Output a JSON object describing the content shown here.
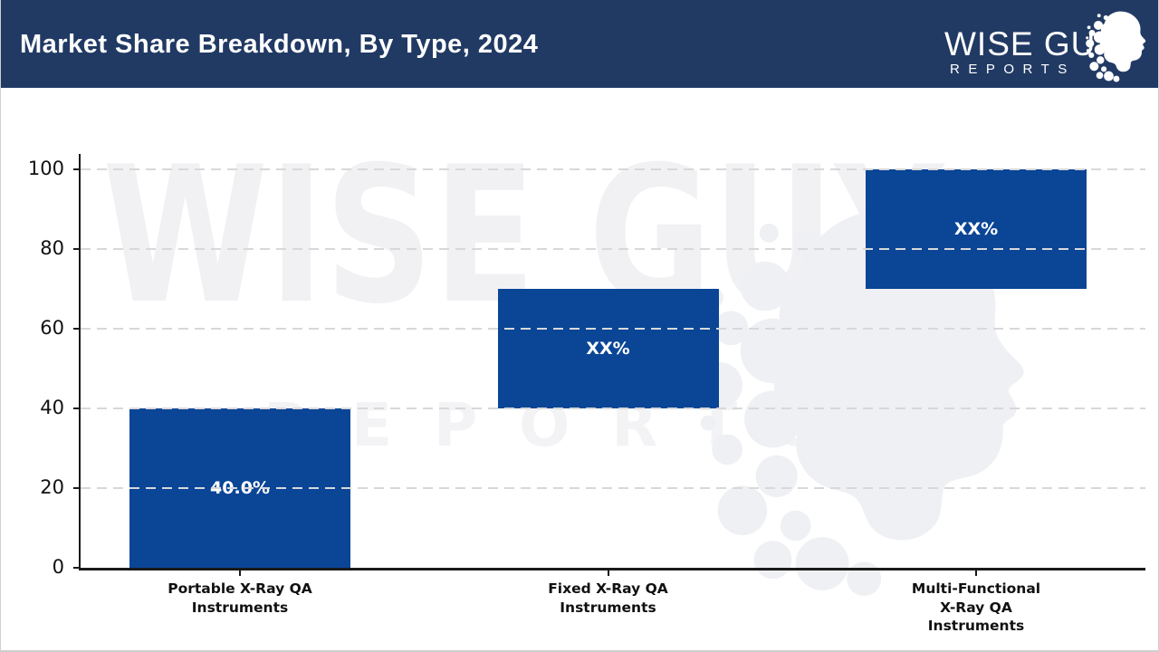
{
  "header": {
    "title": "Market Share Breakdown, By Type, 2024",
    "logo": {
      "line1": "WISE GUY",
      "line2": "REPORTS"
    }
  },
  "watermark": {
    "line1": "WISE GUY",
    "line2": "REPORTS"
  },
  "chart_data": {
    "type": "bar",
    "subtype": "floating-segment-bars (stacked percentage breakdown)",
    "title": "Market Share Breakdown, By Type, 2024",
    "categories": [
      "Portable X-Ray QA Instruments",
      "Fixed X-Ray QA Instruments",
      "Multi-Functional X-Ray QA Instruments"
    ],
    "category_label_lines": [
      [
        "Portable X-Ray QA",
        "Instruments"
      ],
      [
        "Fixed X-Ray QA",
        "Instruments"
      ],
      [
        "Multi-Functional",
        "X-Ray QA",
        "Instruments"
      ]
    ],
    "series": [
      {
        "name": "Portable X-Ray QA Instruments",
        "start": 0,
        "end": 40,
        "value_label": "40.0%"
      },
      {
        "name": "Fixed X-Ray QA Instruments",
        "start": 40,
        "end": 70,
        "value_label": "XX%"
      },
      {
        "name": "Multi-Functional X-Ray QA Instruments",
        "start": 70,
        "end": 100,
        "value_label": "XX%"
      }
    ],
    "xlabel": "",
    "ylabel": "",
    "yticks": [
      0,
      20,
      40,
      60,
      80,
      100
    ],
    "ylim": [
      0,
      104
    ],
    "grid": "horizontal dashed gridlines at each ytick, drawn over bars",
    "legend": "none",
    "bar_color": "#0a4596",
    "value_label_color": "#ffffff"
  },
  "colors": {
    "header_bg": "#213a64",
    "bar": "#0a4596",
    "grid": "#d8d8d8",
    "axis": "#1a1a1a",
    "watermark": "#f1f1f4",
    "page_border": "#cfcfcf"
  }
}
